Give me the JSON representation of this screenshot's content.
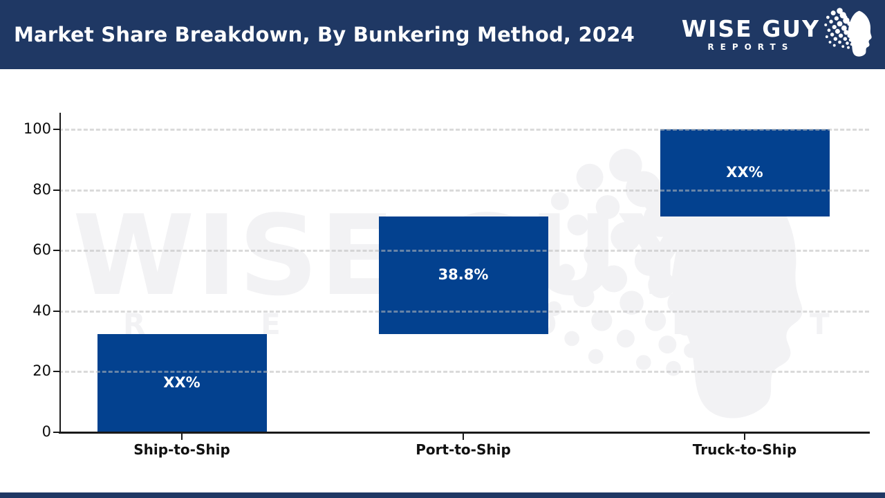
{
  "header": {
    "title": "Market Share Breakdown, By Bunkering Method, 2024",
    "logo": {
      "line1": "WISE GUY",
      "line2": "REPORTS"
    }
  },
  "watermark": {
    "line1": "WISE GUY",
    "line2": "R E P O R T S"
  },
  "colors": {
    "header_bg": "#1f3864",
    "bar": "#03418f",
    "bar_label_text": "#ffffff",
    "axis": "#1a1a1a",
    "gridline": "#bbbbbb",
    "watermark": "#f2f2f4"
  },
  "chart_data": {
    "type": "bar",
    "subtype": "waterfall",
    "title": "Market Share Breakdown, By Bunkering Method, 2024",
    "xlabel": "",
    "ylabel": "",
    "categories": [
      "Ship-to-Ship",
      "Port-to-Ship",
      "Truck-to-Ship"
    ],
    "bars": [
      {
        "category": "Ship-to-Ship",
        "from": 0,
        "to": 32.4,
        "label": "XX%"
      },
      {
        "category": "Port-to-Ship",
        "from": 32.4,
        "to": 71.2,
        "label": "38.8%"
      },
      {
        "category": "Truck-to-Ship",
        "from": 71.2,
        "to": 100,
        "label": "XX%"
      }
    ],
    "yticks": [
      0,
      20,
      40,
      60,
      80,
      100
    ],
    "ylim": [
      0,
      105
    ],
    "grid": "dashed-horizontal",
    "legend": "none"
  }
}
